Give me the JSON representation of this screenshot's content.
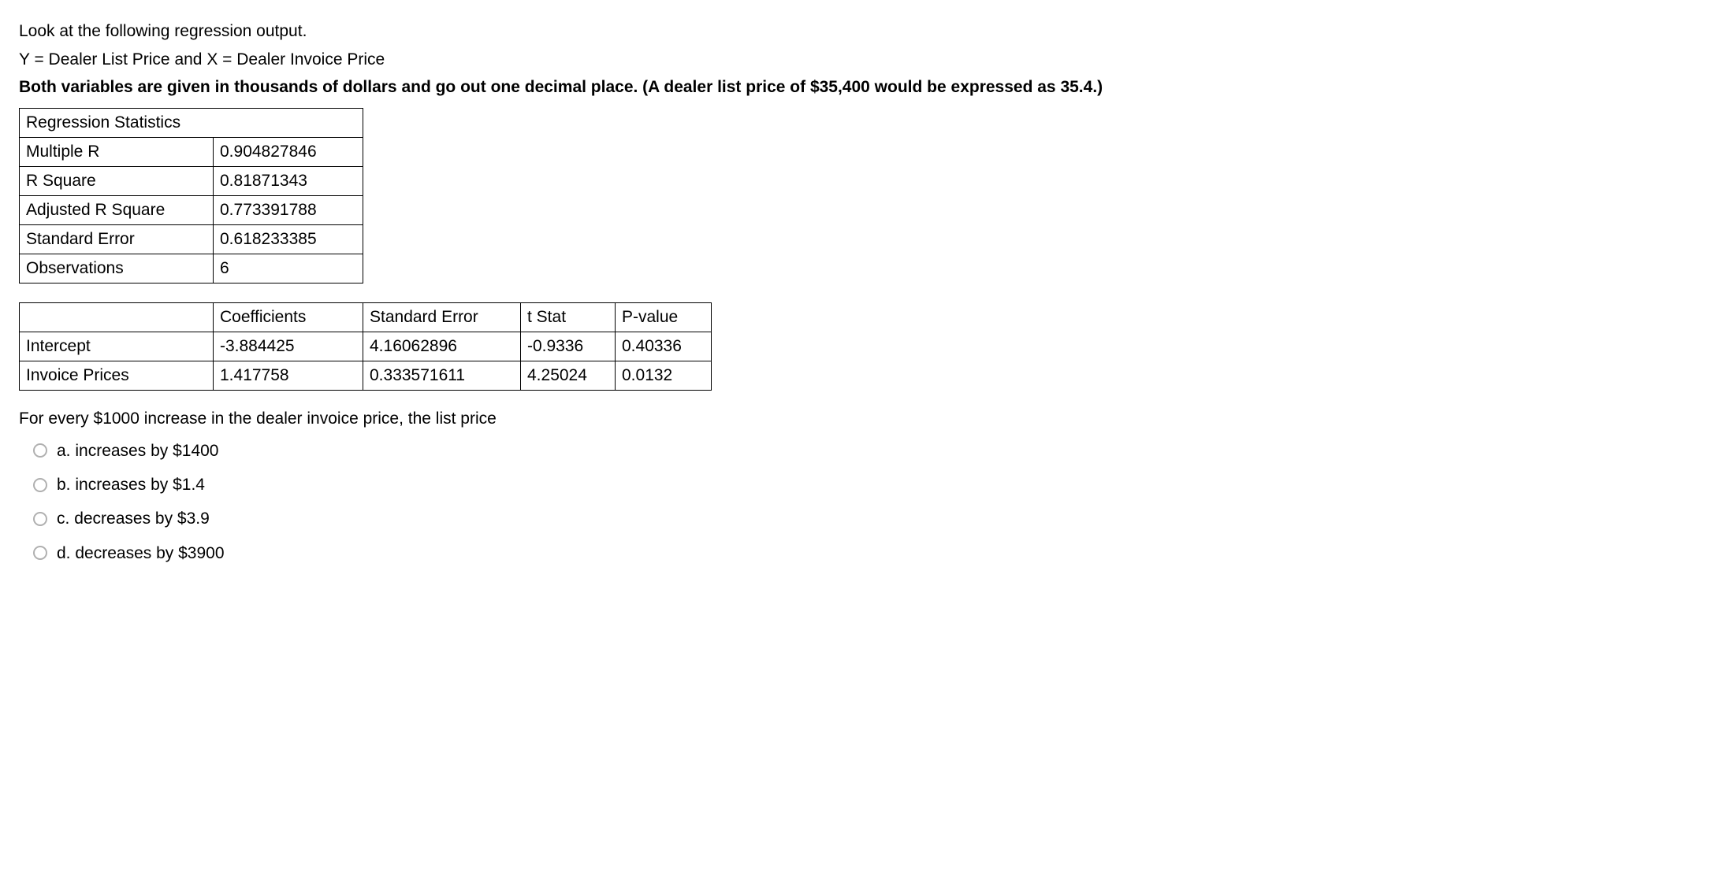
{
  "intro": {
    "line1": "Look at the following regression output.",
    "line2": "Y = Dealer List Price and X = Dealer Invoice Price",
    "line3_bold": "Both variables are given in thousands of dollars and go out one decimal place. (A dealer list price of $35,400 would be expressed as 35.4.)"
  },
  "stats_table": {
    "header": "Regression Statistics",
    "rows": [
      {
        "label": "Multiple R",
        "value": "0.904827846"
      },
      {
        "label": "R Square",
        "value": "0.81871343"
      },
      {
        "label": "Adjusted R Square",
        "value": "0.773391788"
      },
      {
        "label": "Standard Error",
        "value": "0.618233385"
      },
      {
        "label": "Observations",
        "value": "6"
      }
    ]
  },
  "coef_table": {
    "columns": [
      "",
      "Coefficients",
      "Standard Error",
      "t Stat",
      "P-value"
    ],
    "rows": [
      {
        "label": "Intercept",
        "coef": "-3.884425",
        "se": "4.16062896",
        "tstat": "-0.9336",
        "pval": "0.40336"
      },
      {
        "label": "Invoice Prices",
        "coef": "1.417758",
        "se": "0.333571611",
        "tstat": "4.25024",
        "pval": "0.0132"
      }
    ]
  },
  "question": "For every $1000 increase in the dealer invoice price, the list price",
  "options": [
    {
      "letter": "a.",
      "text": "increases by $1400"
    },
    {
      "letter": "b.",
      "text": "increases by $1.4"
    },
    {
      "letter": "c.",
      "text": "decreases by $3.9"
    },
    {
      "letter": "d.",
      "text": "decreases by $3900"
    }
  ],
  "colors": {
    "text": "#000000",
    "background": "#ffffff",
    "border": "#000000",
    "radio_border": "#b0b0b0"
  },
  "typography": {
    "base_fontsize": 21,
    "font_family": "Arial, Helvetica, sans-serif"
  }
}
